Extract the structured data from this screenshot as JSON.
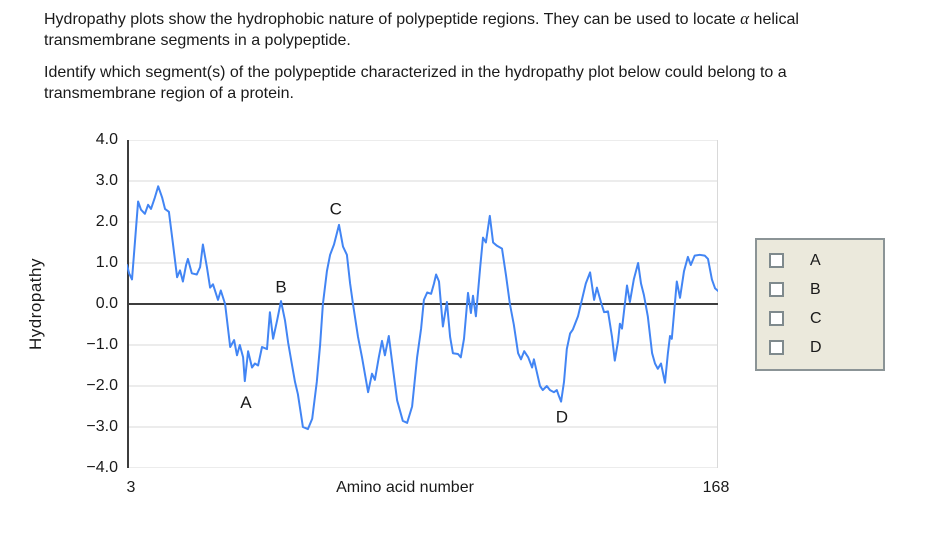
{
  "instructions": {
    "paragraph1_before": "Hydropathy plots show the hydrophobic nature of polypeptide regions. They can be used to locate ",
    "paragraph1_alpha": "α",
    "paragraph1_after": " helical\ntransmembrane segments in a polypeptide.",
    "paragraph2": "Identify which segment(s) of the polypeptide characterized in the hydropathy plot below could belong to a\ntransmembrane region of a protein."
  },
  "chart_data": {
    "type": "line",
    "title": "",
    "xlabel": "Amino acid number",
    "ylabel": "Hydropathy",
    "xlim": [
      3,
      168
    ],
    "ylim": [
      -4,
      4
    ],
    "grid": true,
    "x_ticks": [
      "3",
      "168"
    ],
    "y_ticks": [
      "4.0",
      "3.0",
      "2.0",
      "1.0",
      "0.0",
      "−1.0",
      "−2.0",
      "−3.0",
      "−4.0"
    ],
    "y_tick_values": [
      4,
      3,
      2,
      1,
      0,
      -1,
      -2,
      -3,
      -4
    ],
    "colors": {
      "line": "#4285f4",
      "grid": "#d9d9d9",
      "axis": "#3d3d3d",
      "annotation": "#1a1a1a"
    },
    "annotations": [
      {
        "label": "A",
        "aa": 36.2,
        "value": -2.4
      },
      {
        "label": "B",
        "aa": 46.0,
        "value": 0.42
      },
      {
        "label": "C",
        "aa": 61.3,
        "value": 2.32
      },
      {
        "label": "D",
        "aa": 124.4,
        "value": -2.76
      }
    ],
    "series": [
      {
        "name": "hydropathy",
        "points": [
          [
            3,
            0.95
          ],
          [
            3.6,
            0.75
          ],
          [
            4.4,
            0.6
          ],
          [
            5.2,
            1.5
          ],
          [
            6.1,
            2.5
          ],
          [
            6.9,
            2.3
          ],
          [
            8,
            2.2
          ],
          [
            8.9,
            2.42
          ],
          [
            9.7,
            2.32
          ],
          [
            10.8,
            2.6
          ],
          [
            11.7,
            2.87
          ],
          [
            12.8,
            2.6
          ],
          [
            13.6,
            2.32
          ],
          [
            14.7,
            2.25
          ],
          [
            15.8,
            1.5
          ],
          [
            17,
            0.65
          ],
          [
            17.8,
            0.82
          ],
          [
            18.6,
            0.55
          ],
          [
            19.5,
            0.95
          ],
          [
            20,
            1.1
          ],
          [
            21.1,
            0.75
          ],
          [
            22.5,
            0.72
          ],
          [
            23.4,
            0.9
          ],
          [
            24.2,
            1.45
          ],
          [
            25.3,
            0.9
          ],
          [
            26.2,
            0.4
          ],
          [
            27,
            0.48
          ],
          [
            28.4,
            0.1
          ],
          [
            29.2,
            0.33
          ],
          [
            30.4,
            0
          ],
          [
            31.8,
            -1.05
          ],
          [
            32.9,
            -0.88
          ],
          [
            33.7,
            -1.25
          ],
          [
            34.5,
            -1
          ],
          [
            35.4,
            -1.3
          ],
          [
            35.9,
            -1.88
          ],
          [
            36.8,
            -1.15
          ],
          [
            37.9,
            -1.55
          ],
          [
            38.7,
            -1.45
          ],
          [
            39.6,
            -1.5
          ],
          [
            40.7,
            -1.05
          ],
          [
            42.1,
            -1.1
          ],
          [
            42.9,
            -0.2
          ],
          [
            43.8,
            -0.85
          ],
          [
            44.9,
            -0.4
          ],
          [
            46,
            0.07
          ],
          [
            47.1,
            -0.4
          ],
          [
            48,
            -0.95
          ],
          [
            49.1,
            -1.5
          ],
          [
            49.9,
            -1.9
          ],
          [
            50.7,
            -2.2
          ],
          [
            52.1,
            -3
          ],
          [
            53.5,
            -3.05
          ],
          [
            54.7,
            -2.8
          ],
          [
            56,
            -1.9
          ],
          [
            56.9,
            -1
          ],
          [
            57.7,
            0
          ],
          [
            58.8,
            0.8
          ],
          [
            59.7,
            1.2
          ],
          [
            60.8,
            1.45
          ],
          [
            62.2,
            1.93
          ],
          [
            63.3,
            1.4
          ],
          [
            64.4,
            1.2
          ],
          [
            65.3,
            0.5
          ],
          [
            66.1,
            0
          ],
          [
            67.5,
            -0.8
          ],
          [
            68.6,
            -1.3
          ],
          [
            70.3,
            -2.15
          ],
          [
            71.4,
            -1.7
          ],
          [
            72.2,
            -1.85
          ],
          [
            73.3,
            -1.3
          ],
          [
            74.2,
            -0.9
          ],
          [
            75,
            -1.25
          ],
          [
            76.1,
            -0.78
          ],
          [
            77.3,
            -1.6
          ],
          [
            78.4,
            -2.35
          ],
          [
            80,
            -2.85
          ],
          [
            81.2,
            -2.9
          ],
          [
            82.6,
            -2.5
          ],
          [
            84,
            -1.3
          ],
          [
            85.1,
            -0.6
          ],
          [
            85.9,
            0.1
          ],
          [
            86.8,
            0.28
          ],
          [
            87.9,
            0.25
          ],
          [
            88.7,
            0.5
          ],
          [
            89.3,
            0.72
          ],
          [
            90.1,
            0.55
          ],
          [
            91.2,
            -0.55
          ],
          [
            92.3,
            0.05
          ],
          [
            93.2,
            -0.8
          ],
          [
            94,
            -1.2
          ],
          [
            95.4,
            -1.22
          ],
          [
            96.2,
            -1.3
          ],
          [
            97.1,
            -0.85
          ],
          [
            98.2,
            0.27
          ],
          [
            99,
            -0.22
          ],
          [
            99.6,
            0.2
          ],
          [
            100.4,
            -0.3
          ],
          [
            101.6,
            0.9
          ],
          [
            102.4,
            1.62
          ],
          [
            103.2,
            1.5
          ],
          [
            104.3,
            2.15
          ],
          [
            105.2,
            1.5
          ],
          [
            106.3,
            1.42
          ],
          [
            107.7,
            1.35
          ],
          [
            108.8,
            0.7
          ],
          [
            109.9,
            0
          ],
          [
            111,
            -0.5
          ],
          [
            112.2,
            -1.2
          ],
          [
            113,
            -1.35
          ],
          [
            113.9,
            -1.15
          ],
          [
            115,
            -1.3
          ],
          [
            116.1,
            -1.55
          ],
          [
            116.6,
            -1.35
          ],
          [
            118.3,
            -2
          ],
          [
            119.1,
            -2.1
          ],
          [
            120.2,
            -2
          ],
          [
            121.1,
            -2.1
          ],
          [
            122.2,
            -2.15
          ],
          [
            123,
            -2.1
          ],
          [
            123.6,
            -2.25
          ],
          [
            124.2,
            -2.38
          ],
          [
            125,
            -1.9
          ],
          [
            125.8,
            -1.1
          ],
          [
            126.7,
            -0.72
          ],
          [
            127.5,
            -0.62
          ],
          [
            128.9,
            -0.3
          ],
          [
            130,
            0.1
          ],
          [
            131.1,
            0.5
          ],
          [
            132.3,
            0.77
          ],
          [
            133.4,
            0.1
          ],
          [
            134.2,
            0.4
          ],
          [
            135.3,
            0.05
          ],
          [
            136.2,
            -0.2
          ],
          [
            137.3,
            -0.18
          ],
          [
            138.4,
            -0.8
          ],
          [
            139.2,
            -1.38
          ],
          [
            140.1,
            -0.9
          ],
          [
            140.6,
            -0.48
          ],
          [
            141.2,
            -0.6
          ],
          [
            142.6,
            0.45
          ],
          [
            143.4,
            0.05
          ],
          [
            144.5,
            0.6
          ],
          [
            145.7,
            1
          ],
          [
            146.5,
            0.5
          ],
          [
            147.3,
            0.22
          ],
          [
            148.4,
            -0.3
          ],
          [
            149.6,
            -1.2
          ],
          [
            150.4,
            -1.45
          ],
          [
            151.2,
            -1.58
          ],
          [
            152.1,
            -1.45
          ],
          [
            153.2,
            -1.92
          ],
          [
            154,
            -1.2
          ],
          [
            154.6,
            -0.78
          ],
          [
            155.1,
            -0.85
          ],
          [
            156.5,
            0.55
          ],
          [
            157.4,
            0.15
          ],
          [
            158.5,
            0.8
          ],
          [
            159.6,
            1.15
          ],
          [
            160.4,
            0.95
          ],
          [
            161.5,
            1.18
          ],
          [
            162.9,
            1.2
          ],
          [
            164.3,
            1.18
          ],
          [
            165.2,
            1.1
          ],
          [
            166.3,
            0.6
          ],
          [
            167.2,
            0.38
          ],
          [
            168,
            0.32
          ]
        ]
      }
    ]
  },
  "answer_panel": {
    "options": [
      {
        "label": "A",
        "checked": false
      },
      {
        "label": "B",
        "checked": false
      },
      {
        "label": "C",
        "checked": false
      },
      {
        "label": "D",
        "checked": false
      }
    ]
  }
}
